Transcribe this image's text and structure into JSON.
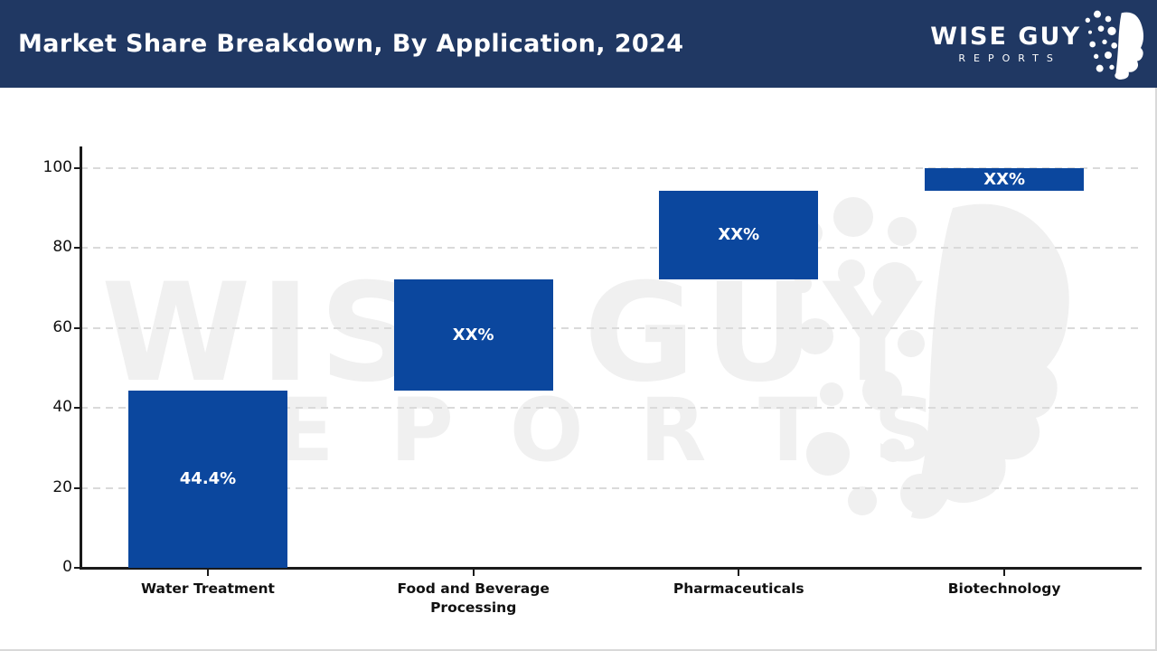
{
  "header": {
    "title": "Market Share Breakdown, By Application, 2024",
    "bg_color": "#203863",
    "logo": {
      "line1": "WISE GUY",
      "line2": "REPORTS"
    }
  },
  "watermark": {
    "line1": "WISE GUY",
    "line2": "REPORTS"
  },
  "chart_data": {
    "type": "bar",
    "subtype": "waterfall",
    "title": "Market Share Breakdown, By Application, 2024",
    "categories": [
      "Water Treatment",
      "Food and Beverage Processing",
      "Pharmaceuticals",
      "Biotechnology"
    ],
    "bars": [
      {
        "category": "Water Treatment",
        "start": 0,
        "end": 44.4,
        "label": "44.4%"
      },
      {
        "category": "Food and Beverage Processing",
        "start": 44.4,
        "end": 72.2,
        "label": "XX%"
      },
      {
        "category": "Pharmaceuticals",
        "start": 72.2,
        "end": 94.4,
        "label": "XX%"
      },
      {
        "category": "Biotechnology",
        "start": 94.4,
        "end": 100,
        "label": "XX%"
      }
    ],
    "xlabel": "",
    "ylabel": "",
    "ylim": [
      0,
      100
    ],
    "yticks": [
      0,
      20,
      40,
      60,
      80,
      100
    ],
    "grid": "horizontal-dashed",
    "legend": "none",
    "bar_color": "#0b479e",
    "bar_label_color": "#ffffff",
    "axis_color": "#1a1a1a",
    "gridline_color": "#dadada"
  }
}
